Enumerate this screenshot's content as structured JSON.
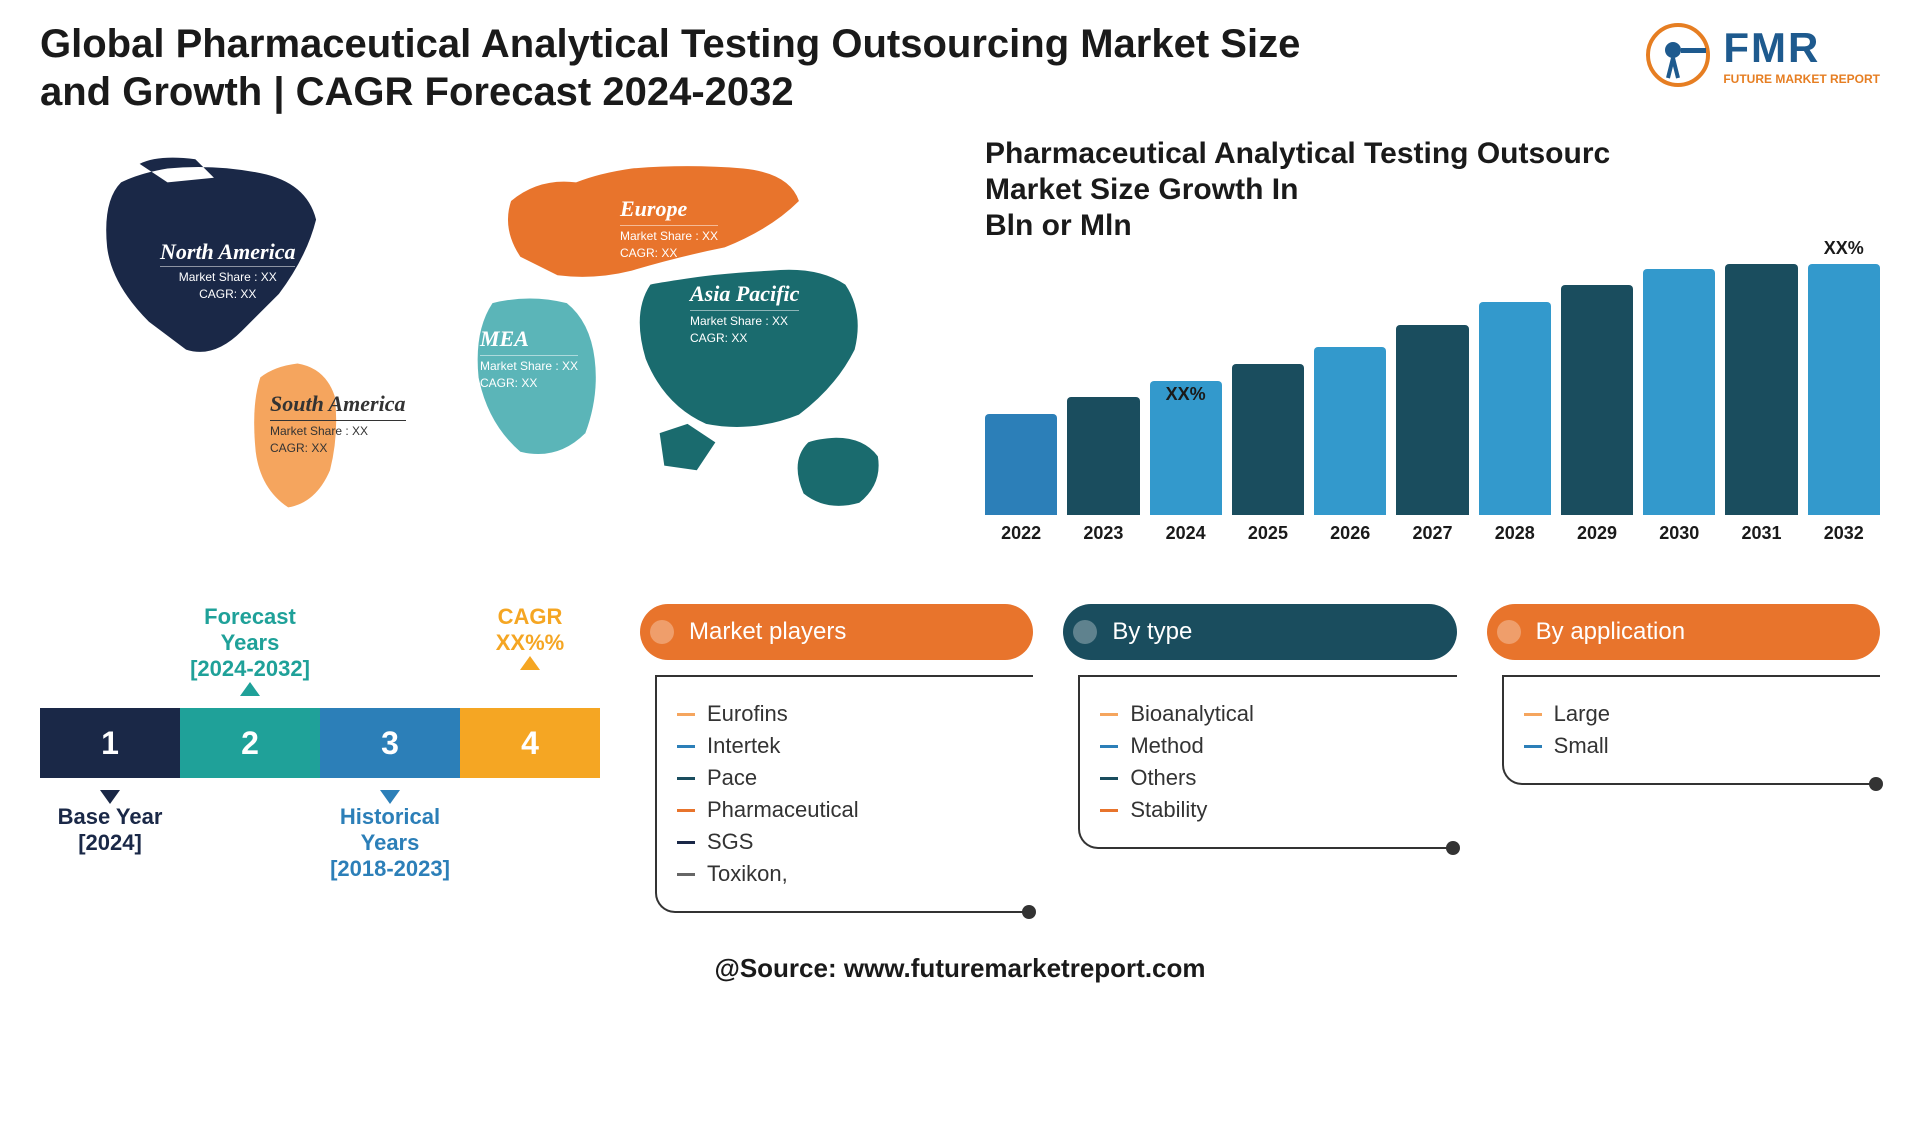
{
  "title": "Global Pharmaceutical Analytical Testing Outsourcing Market Size and Growth | CAGR Forecast 2024-2032",
  "logo": {
    "main": "FMR",
    "sub": "FUTURE MARKET REPORT"
  },
  "map": {
    "regions": [
      {
        "name": "North America",
        "share": "Market Share : XX",
        "cagr": "CAGR: XX",
        "color": "#1a2847"
      },
      {
        "name": "South America",
        "share": "Market Share : XX",
        "cagr": "CAGR: XX",
        "color": "#f5a55e"
      },
      {
        "name": "Europe",
        "share": "Market Share : XX",
        "cagr": "CAGR: XX",
        "color": "#e8742c"
      },
      {
        "name": "MEA",
        "share": "Market Share : XX",
        "cagr": "CAGR: XX",
        "color": "#5bb5b8"
      },
      {
        "name": "Asia Pacific",
        "share": "Market Share : XX",
        "cagr": "CAGR: XX",
        "color": "#1a6b6e"
      }
    ]
  },
  "chart": {
    "title": "Pharmaceutical Analytical Testing Outsourc Market Size Growth In\nBln or Mln",
    "title_line1": "Pharmaceutical Analytical Testing Outsourc",
    "title_line2": "Market Size Growth In",
    "title_line3": "Bln or Mln",
    "years": [
      "2022",
      "2023",
      "2024",
      "2025",
      "2026",
      "2027",
      "2028",
      "2029",
      "2030",
      "2031",
      "2032"
    ],
    "heights": [
      36,
      42,
      48,
      54,
      60,
      68,
      76,
      82,
      88,
      92,
      100
    ],
    "colors": [
      "#2c7fb8",
      "#1a4d5e",
      "#3399cc",
      "#1a4d5e",
      "#3399cc",
      "#1a4d5e",
      "#3399cc",
      "#1a4d5e",
      "#3399cc",
      "#1a4d5e",
      "#3399cc"
    ],
    "label_2024": "XX%",
    "label_2032": "XX%"
  },
  "timeline": {
    "top": [
      {
        "title": "Forecast Years",
        "sub": "[2024-2032]",
        "color": "#1fa199",
        "seg": 2
      },
      {
        "title": "CAGR",
        "sub": "XX%%",
        "color": "#f5a623",
        "seg": 4
      }
    ],
    "segments": [
      {
        "num": "1",
        "color": "#1a2847"
      },
      {
        "num": "2",
        "color": "#1fa199"
      },
      {
        "num": "3",
        "color": "#2c7fb8"
      },
      {
        "num": "4",
        "color": "#f5a623"
      }
    ],
    "bottom": [
      {
        "title": "Base Year",
        "sub": "[2024]",
        "color": "#1a2847",
        "seg": 1
      },
      {
        "title": "Historical Years",
        "sub": "[2018-2023]",
        "color": "#2c7fb8",
        "seg": 3
      }
    ]
  },
  "categories": [
    {
      "title": "Market players",
      "header_color": "#e8742c",
      "items": [
        {
          "label": "Eurofins",
          "color": "#f5a55e"
        },
        {
          "label": "Intertek",
          "color": "#2c7fb8"
        },
        {
          "label": "Pace",
          "color": "#1a4d5e"
        },
        {
          "label": "Pharmaceutical",
          "color": "#e8742c"
        },
        {
          "label": "SGS",
          "color": "#1a2847"
        },
        {
          "label": "Toxikon,",
          "color": "#666"
        }
      ]
    },
    {
      "title": "By type",
      "header_color": "#1a4d5e",
      "items": [
        {
          "label": "Bioanalytical",
          "color": "#f5a55e"
        },
        {
          "label": "Method",
          "color": "#2c7fb8"
        },
        {
          "label": "Others",
          "color": "#1a4d5e"
        },
        {
          "label": "Stability",
          "color": "#e8742c"
        }
      ]
    },
    {
      "title": "By application",
      "header_color": "#e8742c",
      "items": [
        {
          "label": "Large",
          "color": "#f5a55e"
        },
        {
          "label": "Small",
          "color": "#2c7fb8"
        }
      ]
    }
  ],
  "source": "@Source: www.futuremarketreport.com"
}
